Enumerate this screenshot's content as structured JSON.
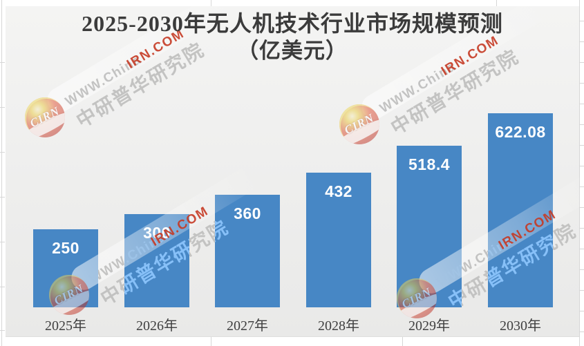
{
  "title": {
    "line1": "2025-2030年无人机技术行业市场规模预测",
    "line2": "（亿美元）"
  },
  "chart_data": {
    "type": "bar",
    "title": "2025-2030年无人机技术行业市场规模预测（亿美元）",
    "categories": [
      "2025年",
      "2026年",
      "2027年",
      "2028年",
      "2029年",
      "2030年"
    ],
    "values": [
      250,
      300,
      360,
      432,
      518.4,
      622.08
    ],
    "value_labels": [
      "250",
      "300",
      "360",
      "432",
      "518.4",
      "622.08"
    ],
    "xlabel": "",
    "ylabel": "",
    "ylim": [
      0,
      700
    ],
    "grid": false,
    "legend": false,
    "axis_visible": false
  },
  "watermark": {
    "url_gray_part": "WWW.China",
    "url_red_part": "IRN.COM",
    "brand_text": "中研普华研究院",
    "logo_text": "CIRN"
  },
  "colors": {
    "bar": "#4787c5",
    "value_text": "#ffffff",
    "axis_text": "#3f3f3f",
    "title_text": "#3b3b3b",
    "background_top": "#f4f4f3",
    "background_bottom": "#e9e9e8",
    "watermark_gray": "#bdbdbd",
    "watermark_red": "#c63a24",
    "grid_line": "#d6d6d6"
  }
}
